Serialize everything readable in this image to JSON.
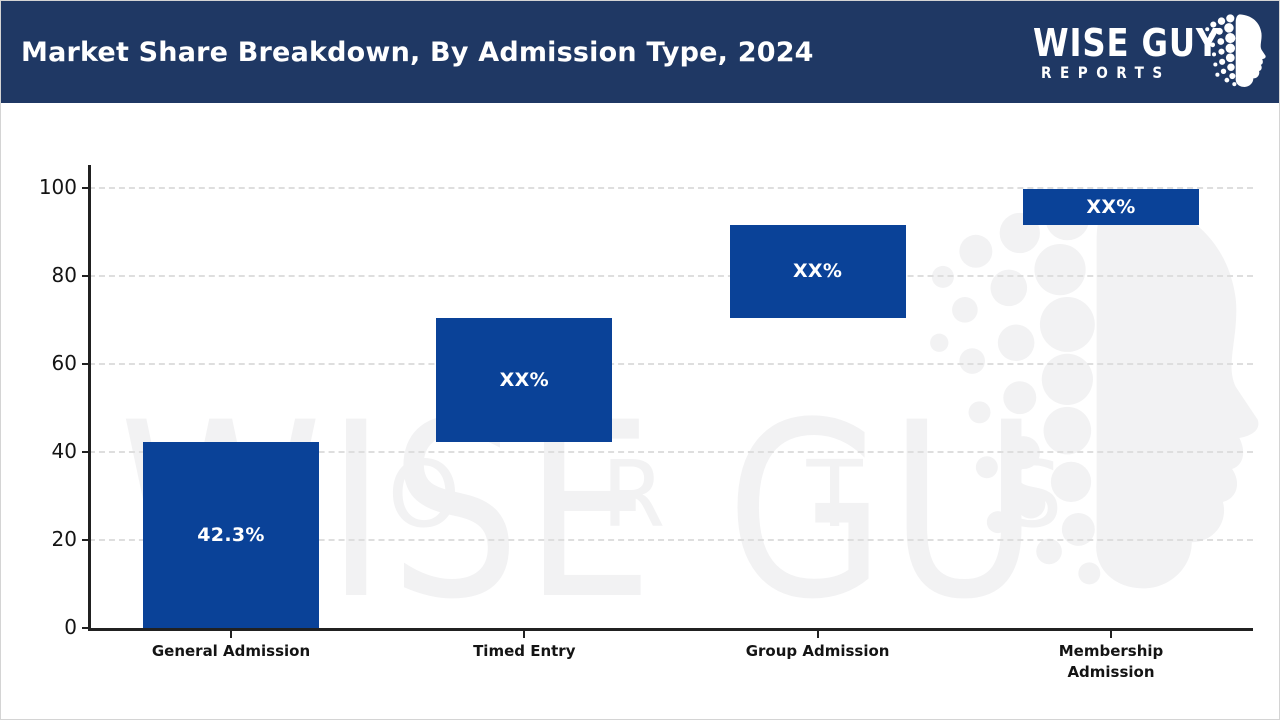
{
  "header": {
    "title": "Market Share Breakdown, By Admission Type, 2024",
    "logo": {
      "line1": "WISE GUY",
      "line2": "REPORTS"
    }
  },
  "watermark": {
    "line1": "WISE GU",
    "line2": "P O R T S"
  },
  "chart_data": {
    "type": "bar",
    "subtype": "waterfall",
    "title": "Market Share Breakdown, By Admission Type, 2024",
    "categories": [
      "General Admission",
      "Timed Entry",
      "Group Admission",
      "Membership Admission"
    ],
    "bars": [
      {
        "category": "General Admission",
        "label": "42.3%",
        "start": 0,
        "end": 42.3
      },
      {
        "category": "Timed Entry",
        "label": "XX%",
        "start": 42.3,
        "end": 70.4
      },
      {
        "category": "Group Admission",
        "label": "XX%",
        "start": 70.4,
        "end": 91.6
      },
      {
        "category": "Membership Admission",
        "label": "XX%",
        "start": 91.6,
        "end": 99.8
      }
    ],
    "yticks": [
      0,
      20,
      40,
      60,
      80,
      100
    ],
    "ylim": [
      0,
      105
    ],
    "xlabel": "",
    "ylabel": "",
    "grid": "horizontal-dashed",
    "legend": "none"
  },
  "colors": {
    "header_bg": "#1f3864",
    "bar": "#0a4298",
    "bar_label": "#ffffff",
    "grid": "#dedede",
    "axis": "#212121",
    "watermark": "#f2f2f3",
    "page_bg": "#ffffff"
  }
}
